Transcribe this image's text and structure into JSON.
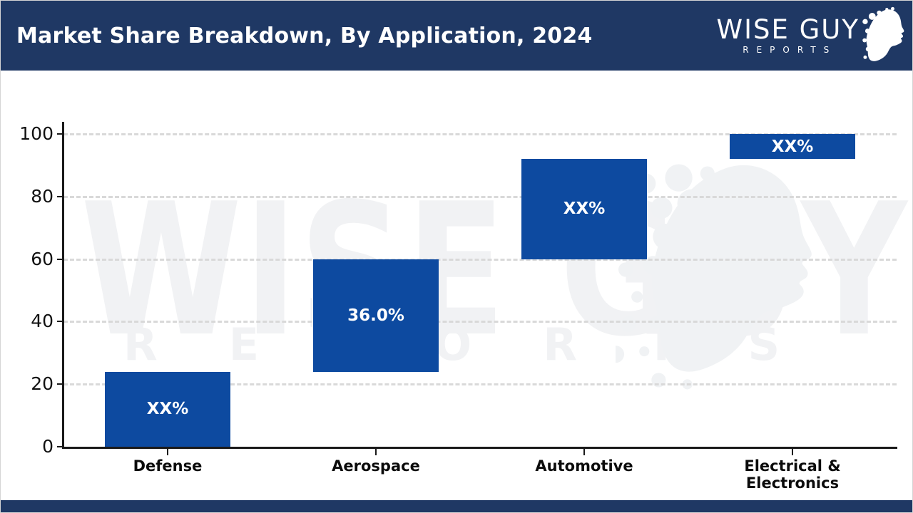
{
  "header": {
    "title": "Market Share Breakdown, By Application, 2024",
    "logo": {
      "line1": "WISE GUY",
      "line2": "REPORTS"
    }
  },
  "watermark": {
    "line1": "WISE GUY",
    "line2": "REPORTS"
  },
  "chart_data": {
    "type": "bar",
    "subtype": "floating-segment-bars (stacked percentage breakdown)",
    "title": "Market Share Breakdown, By Application, 2024",
    "categories": [
      "Defense",
      "Aerospace",
      "Automotive",
      "Electrical & Electronics"
    ],
    "bars": [
      {
        "category": "Defense",
        "category_lines": [
          "Defense"
        ],
        "start": 0,
        "end": 24,
        "label": "XX%"
      },
      {
        "category": "Aerospace",
        "category_lines": [
          "Aerospace"
        ],
        "start": 24,
        "end": 60,
        "label": "36.0%"
      },
      {
        "category": "Automotive",
        "category_lines": [
          "Automotive"
        ],
        "start": 60,
        "end": 92,
        "label": "XX%"
      },
      {
        "category": "Electrical & Electronics",
        "category_lines": [
          "Electrical &",
          "Electronics"
        ],
        "start": 92,
        "end": 100,
        "label": "XX%"
      }
    ],
    "xlabel": "",
    "ylabel": "",
    "ylim": [
      0,
      104
    ],
    "yticks": [
      0,
      20,
      40,
      60,
      80,
      100
    ],
    "grid": "horizontal-dashed",
    "legend": "none",
    "bar_color": "#0d4aa0",
    "bar_label_color": "#ffffff"
  },
  "colors": {
    "header_bg": "#1f3864",
    "footer_bg": "#1f3864",
    "title_text": "#ffffff",
    "bar_blue": "#0d4aa0",
    "watermark_gray": "#f1f2f4",
    "gridline_gray": "#d9d9d9",
    "axis_black": "#1a1a1a",
    "page_border": "#d5d5d5"
  }
}
